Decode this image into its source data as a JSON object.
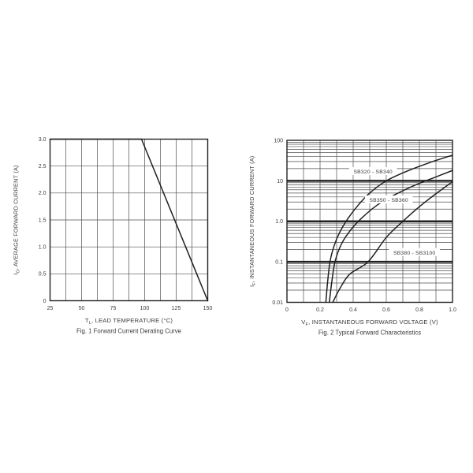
{
  "page": {
    "background": "#ffffff"
  },
  "colors": {
    "curve": "#1f1f1f",
    "grid": "#4f4f4f",
    "frame": "#222222",
    "text": "#3b3b3b",
    "label_bg": "#ffffff"
  },
  "chart_data": [
    {
      "id": "fig1",
      "type": "line",
      "title": "Fig. 1  Forward Current Derating Curve",
      "xlabel": {
        "pre": "T",
        "sub": "L",
        "post": ",  LEAD TEMPERATURE (°C)"
      },
      "ylabel": {
        "pre": "I",
        "sub": "O",
        "post": ", AVERAGE FORWARD CURRENT (A)"
      },
      "xlim": [
        25,
        150
      ],
      "ylim": [
        0,
        3.0
      ],
      "x_grid_step": 12.5,
      "y_grid_step": 0.5,
      "x_ticks": [
        {
          "v": 25,
          "t": "25"
        },
        {
          "v": 50,
          "t": "50"
        },
        {
          "v": 75,
          "t": "75"
        },
        {
          "v": 100,
          "t": "100"
        },
        {
          "v": 125,
          "t": "125"
        },
        {
          "v": 150,
          "t": "150"
        }
      ],
      "y_ticks": [
        {
          "v": 3.0,
          "t": "3.0"
        },
        {
          "v": 2.5,
          "t": "2.5"
        },
        {
          "v": 2.0,
          "t": "2.0"
        },
        {
          "v": 1.5,
          "t": "1.5"
        },
        {
          "v": 1.0,
          "t": "1.0"
        },
        {
          "v": 0.5,
          "t": "0.5"
        },
        {
          "v": 0,
          "t": "0"
        }
      ],
      "series": [
        {
          "name": "derating-curve",
          "smooth": false,
          "points": [
            [
              25,
              3.0
            ],
            [
              97.5,
              3.0
            ],
            [
              150,
              0
            ]
          ]
        }
      ]
    },
    {
      "id": "fig2",
      "type": "line",
      "y_scale": "log",
      "title": "Fig. 2  Typical Forward Characteristics",
      "xlabel": {
        "pre": "V",
        "sub": "F",
        "post": ", INSTANTANEOUS FORWARD VOLTAGE (V)"
      },
      "ylabel": {
        "pre": "I",
        "sub": "F",
        "post": ", INSTANTANEOUS FORWARD CURRENT (A)"
      },
      "xlim": [
        0,
        1.0
      ],
      "ylog_range": [
        -2,
        2
      ],
      "x_grid_step": 0.1,
      "x_ticks": [
        {
          "v": 0,
          "t": "0"
        },
        {
          "v": 0.2,
          "t": "0.2"
        },
        {
          "v": 0.4,
          "t": "0.4"
        },
        {
          "v": 0.6,
          "t": "0.6"
        },
        {
          "v": 0.8,
          "t": "0.8"
        },
        {
          "v": 1.0,
          "t": "1.0"
        }
      ],
      "y_ticks": [
        {
          "v": 100,
          "t": "100"
        },
        {
          "v": 10,
          "t": "10"
        },
        {
          "v": 1.0,
          "t": "1.0"
        },
        {
          "v": 0.1,
          "t": "0.1"
        },
        {
          "v": 0.01,
          "t": "0.01"
        }
      ],
      "series": [
        {
          "name": "SB320 - SB340",
          "smooth": true,
          "label_pos": [
            0.52,
            17
          ],
          "points": [
            [
              0.235,
              0.01
            ],
            [
              0.245,
              0.03
            ],
            [
              0.26,
              0.1
            ],
            [
              0.285,
              0.25
            ],
            [
              0.32,
              0.55
            ],
            [
              0.37,
              1.2
            ],
            [
              0.43,
              2.5
            ],
            [
              0.5,
              5.0
            ],
            [
              0.6,
              10
            ],
            [
              0.72,
              17
            ],
            [
              0.86,
              28
            ],
            [
              1.0,
              43
            ]
          ]
        },
        {
          "name": "SB350 - SB360",
          "smooth": true,
          "label_pos": [
            0.615,
            3.4
          ],
          "points": [
            [
              0.256,
              0.01
            ],
            [
              0.27,
              0.03
            ],
            [
              0.29,
              0.1
            ],
            [
              0.33,
              0.28
            ],
            [
              0.39,
              0.65
            ],
            [
              0.46,
              1.3
            ],
            [
              0.55,
              2.6
            ],
            [
              0.65,
              4.5
            ],
            [
              0.78,
              8.0
            ],
            [
              0.9,
              12.5
            ],
            [
              1.0,
              18
            ]
          ]
        },
        {
          "name": "SB380 - SB3100",
          "smooth": true,
          "label_pos": [
            0.77,
            0.17
          ],
          "points": [
            [
              0.277,
              0.01
            ],
            [
              0.32,
              0.022
            ],
            [
              0.38,
              0.05
            ],
            [
              0.49,
              0.1
            ],
            [
              0.6,
              0.4
            ],
            [
              0.7,
              1.0
            ],
            [
              0.8,
              2.3
            ],
            [
              0.9,
              4.8
            ],
            [
              1.0,
              9.5
            ]
          ]
        }
      ]
    }
  ]
}
